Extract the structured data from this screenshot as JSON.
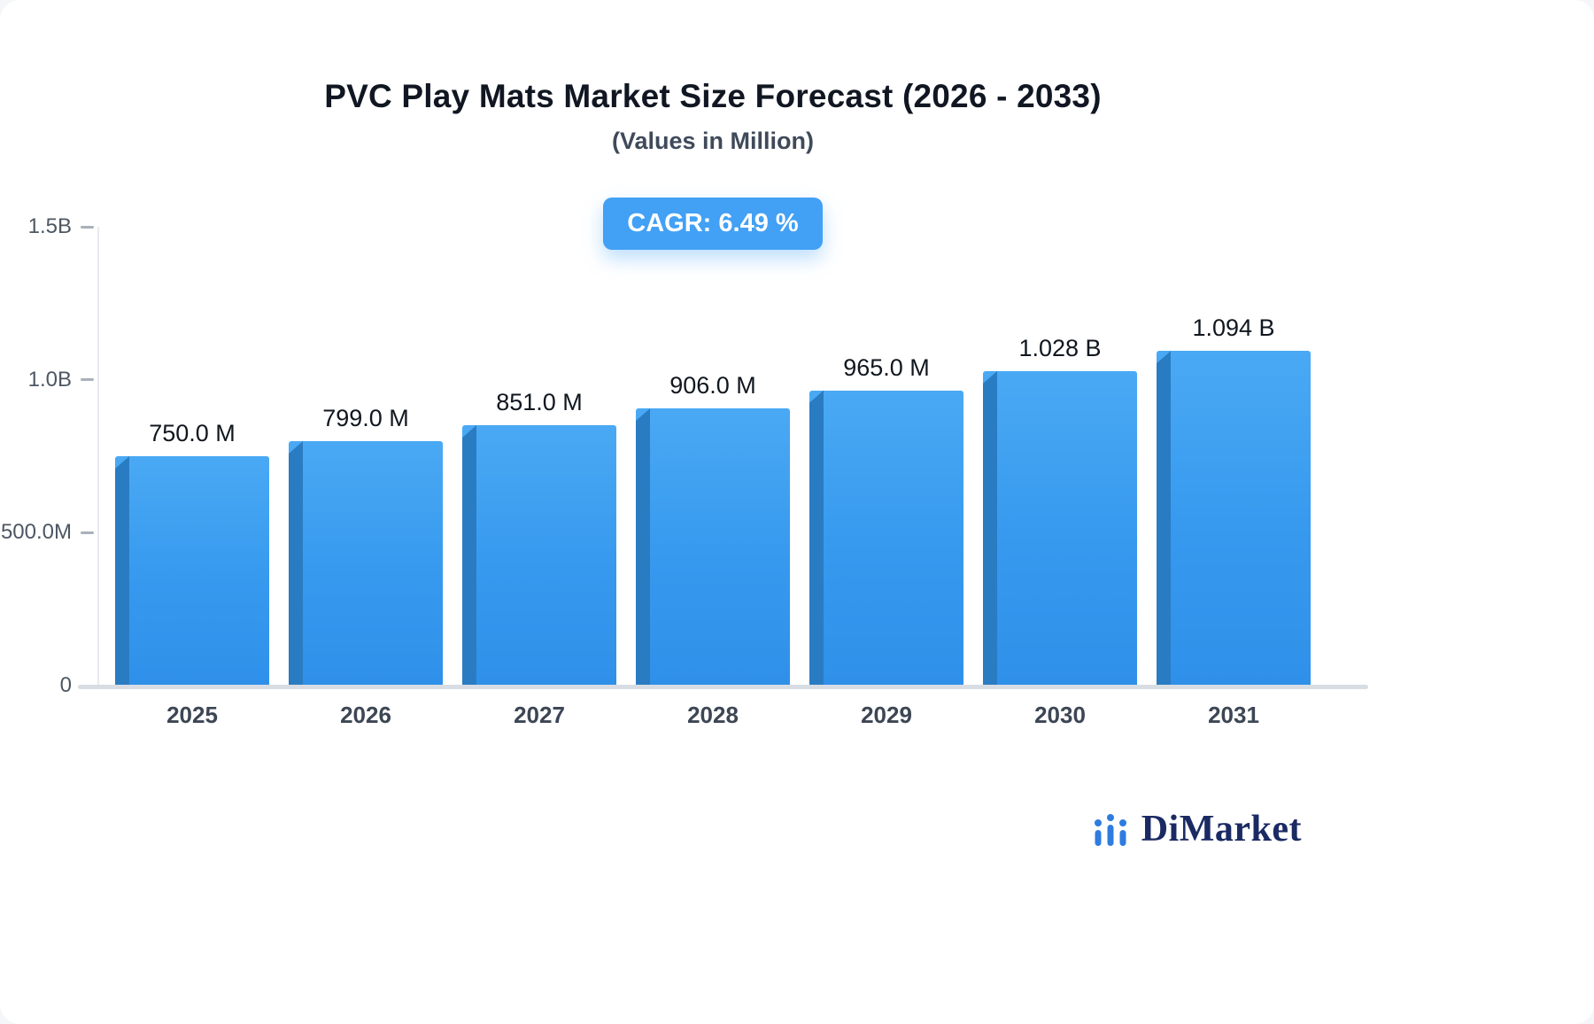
{
  "header": {
    "title": "PVC Play Mats Market Size Forecast (2026 - 2033)",
    "subtitle": "(Values in Million)"
  },
  "badge": {
    "label": "CAGR: 6.49 %"
  },
  "chart_data": {
    "type": "bar",
    "title": "PVC Play Mats Market Size Forecast (2026 - 2033)",
    "subtitle": "(Values in Million)",
    "categories": [
      "2025",
      "2026",
      "2027",
      "2028",
      "2029",
      "2030",
      "2031"
    ],
    "values": [
      750,
      799,
      851,
      906,
      965,
      1028,
      1094
    ],
    "value_labels": [
      "750.0 M",
      "799.0 M",
      "851.0 M",
      "906.0 M",
      "965.0 M",
      "1.028 B",
      "1.094 B"
    ],
    "xlabel": "",
    "ylabel": "",
    "ylim": [
      0,
      1500
    ],
    "yticks": [
      {
        "label": "1.5B",
        "value": 1500
      },
      {
        "label": "1.0B",
        "value": 1000
      },
      {
        "label": "500.0M",
        "value": 500
      },
      {
        "label": "0",
        "value": 0
      }
    ],
    "grid": false,
    "legend": false,
    "bar_color": "#3b9bee",
    "bar_side_color": "#2a7cc2",
    "cagr": "6.49 %"
  },
  "logo": {
    "text": "DiMarket",
    "color": "#1b2a63",
    "icon_color": "#2e7ce0"
  }
}
